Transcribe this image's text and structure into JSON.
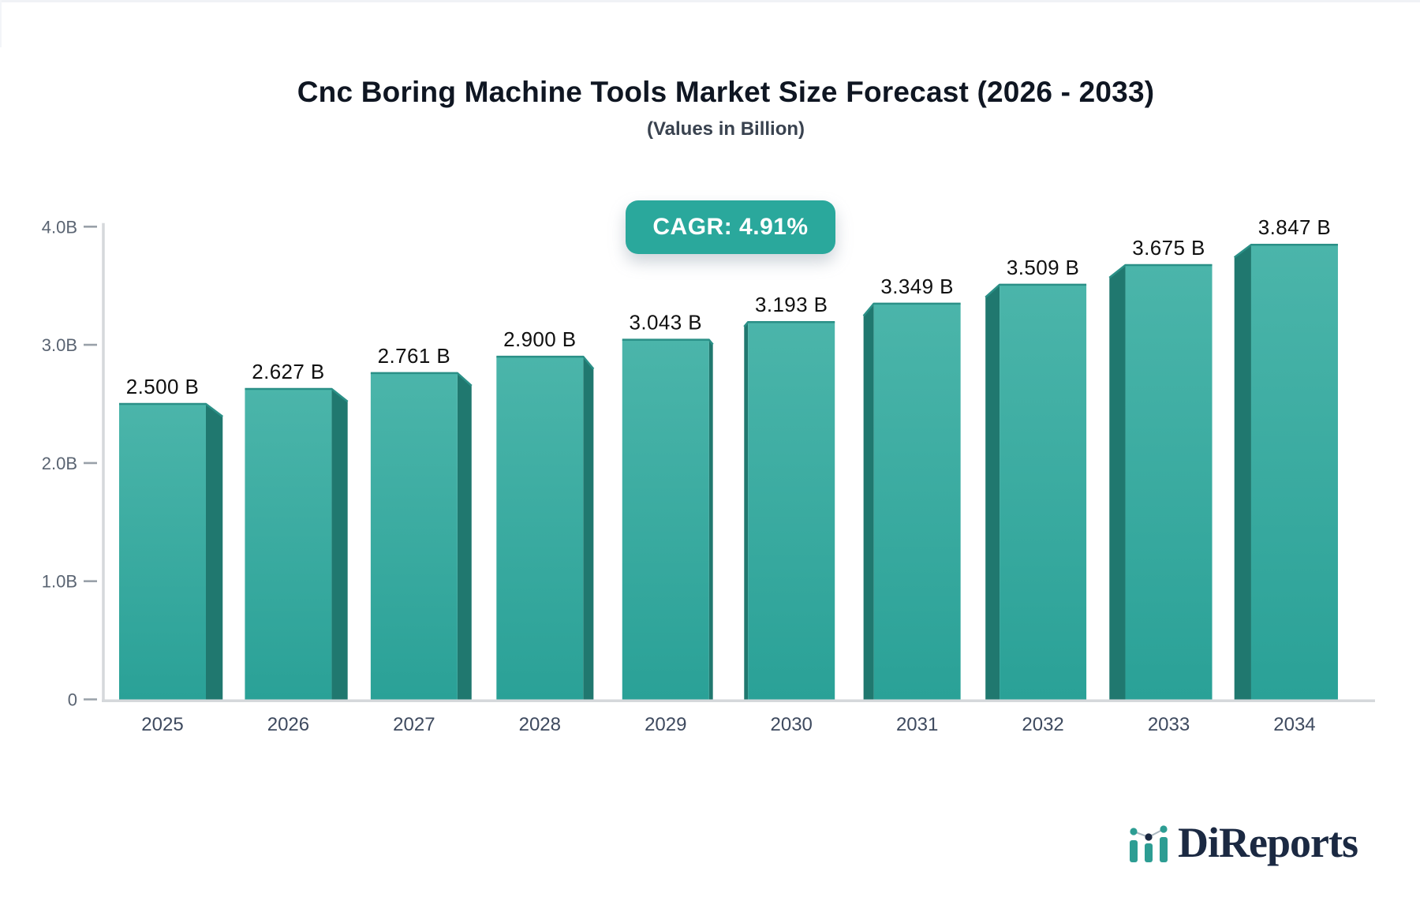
{
  "badge": {
    "label": "CAGR: 4.91%"
  },
  "logo": {
    "brand": "DiReports"
  },
  "colors": {
    "bar_face_top": "#4bb5aa",
    "bar_face_bottom": "#2aa197",
    "bar_side": "#20786f",
    "bar_edge": "#2b9087",
    "axis_line": "#d5d8db",
    "tick_mark": "#99a1a9",
    "ytick_text": "#5a6472",
    "xtick_text": "#3e4a5f",
    "value_text": "#101010",
    "badge_bg": "#2aa89c",
    "badge_text": "#ffffff",
    "logo_navy": "#1b2942",
    "logo_teal": "#2d9d93",
    "logo_link_line": "#aab7c0"
  },
  "chart_data": {
    "type": "bar",
    "title": "Cnc Boring Machine Tools Market Size Forecast (2026 - 2033)",
    "subtitle": "(Values in Billion)",
    "categories": [
      "2025",
      "2026",
      "2027",
      "2028",
      "2029",
      "2030",
      "2031",
      "2032",
      "2033",
      "2034"
    ],
    "values": [
      2.5,
      2.627,
      2.761,
      2.9,
      3.043,
      3.193,
      3.349,
      3.509,
      3.675,
      3.847
    ],
    "value_labels": [
      "2.500 B",
      "2.627 B",
      "2.761 B",
      "2.900 B",
      "3.043 B",
      "3.193 B",
      "3.349 B",
      "3.509 B",
      "3.675 B",
      "3.847 B"
    ],
    "unit": "Billion",
    "xlabel": "",
    "ylabel": "",
    "ylim": [
      0,
      4.0
    ],
    "ytick_values": [
      0,
      1,
      2,
      3,
      4
    ],
    "ytick_labels": [
      "0",
      "1.0B",
      "2.0B",
      "3.0B",
      "4.0B"
    ],
    "style": {
      "legend": "none",
      "grid": "off",
      "bar_effect": "3d-bevel-toward-center"
    },
    "annotations": [
      {
        "text": "CAGR: 4.91%",
        "position": "top-center"
      }
    ]
  }
}
